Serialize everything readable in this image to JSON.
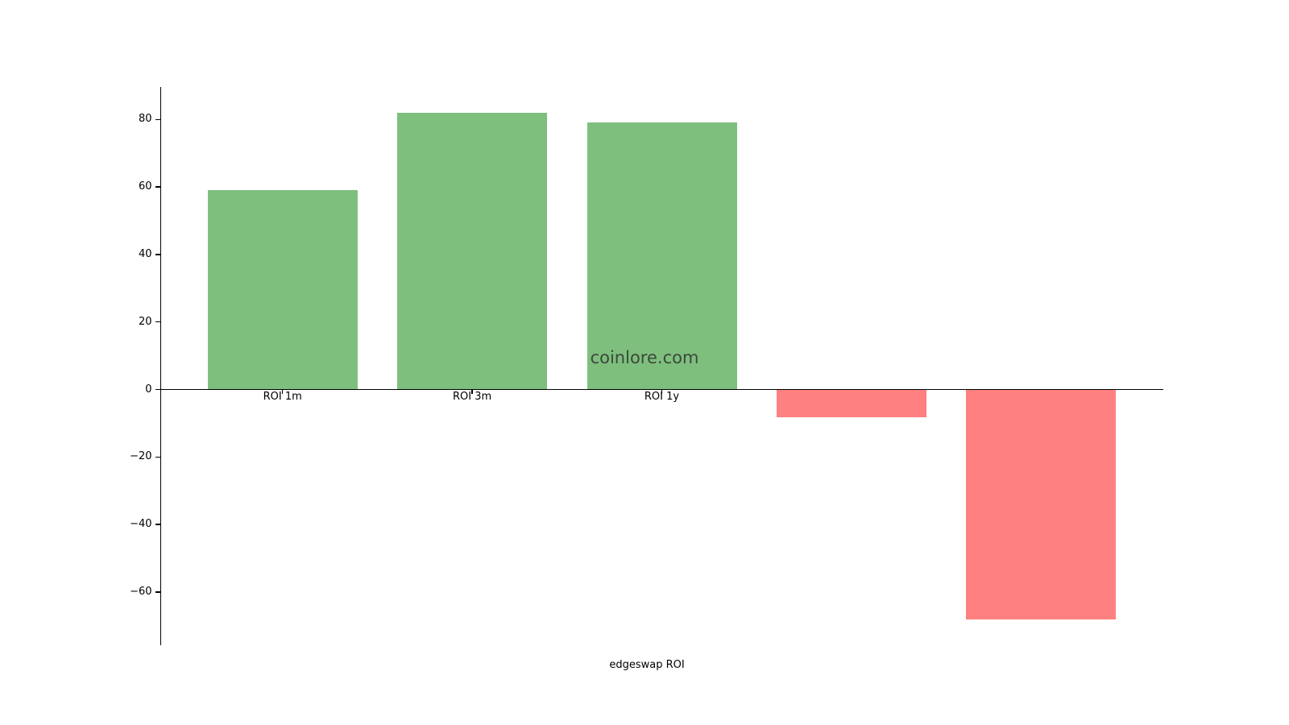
{
  "chart_data": {
    "type": "bar",
    "categories": [
      "ROI 1m",
      "ROI 3m",
      "ROI 1y",
      "",
      ""
    ],
    "values": [
      59,
      82,
      79,
      -8,
      -68
    ],
    "series": [
      {
        "name": "edgeswap ROI",
        "values": [
          59,
          82,
          79,
          -8,
          -68
        ]
      }
    ],
    "title": "",
    "xlabel": "edgeswap ROI",
    "ylabel": "",
    "yticks": [
      80,
      60,
      40,
      20,
      0,
      -20,
      -40,
      -60
    ],
    "ylim": [
      -75.8,
      89.6
    ],
    "grid": false,
    "legend_position": "none",
    "positive_color": "#7ebf7e",
    "negative_color": "#ff8080",
    "axis_color": "#000000",
    "tick_label_color": "#000000",
    "watermark": "coinlore.com",
    "watermark_color": "#2d2d2d"
  }
}
